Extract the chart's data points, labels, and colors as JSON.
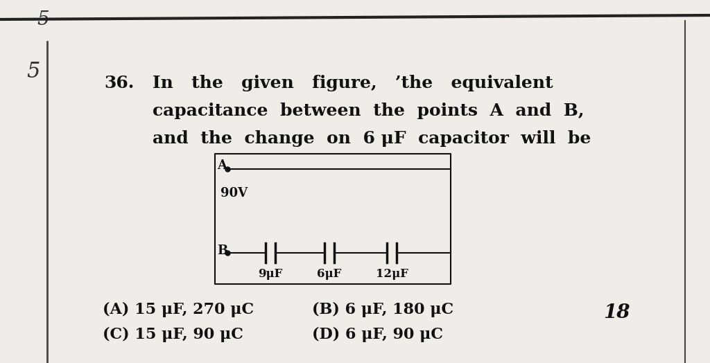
{
  "background_color": "#e8e5e0",
  "page_bg": "#f0ede8",
  "title_number": "36.",
  "question_line1": "In   the   given   figure,   ’the   equivalent",
  "question_line2": "capacitance  between  the  points  A  and  B,",
  "question_line3": "and  the  change  on  6 μF  capacitor  will  be",
  "options": [
    "(A) 15 μF, 270 μC",
    "(B) 6 μF, 180 μC",
    "(C) 15 μF, 90 μC",
    "(D) 6 μF, 90 μC"
  ],
  "voltage_label": "90V",
  "point_A_label": "A",
  "point_B_label": "B",
  "capacitor_labels": [
    "9μF",
    "6μF",
    "12μF"
  ],
  "text_color": "#111111",
  "circuit_color": "#111111",
  "side_number": "5",
  "right_number": "18",
  "top_line_color": "#222222",
  "border_line_color": "#444444"
}
